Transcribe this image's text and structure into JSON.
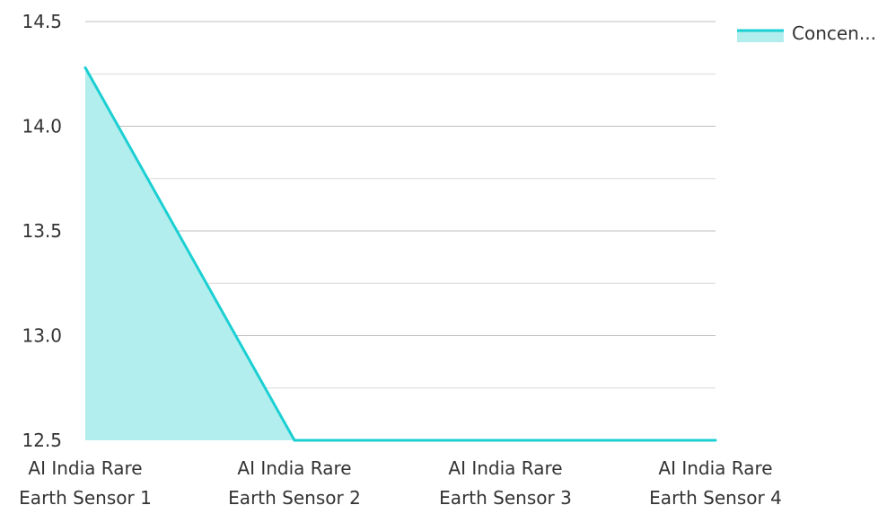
{
  "chart_data": {
    "type": "area",
    "categories": [
      [
        "AI India Rare",
        "Earth Sensor 1"
      ],
      [
        "AI India Rare",
        "Earth Sensor 2"
      ],
      [
        "AI India Rare",
        "Earth Sensor 3"
      ],
      [
        "AI India Rare",
        "Earth Sensor 4"
      ]
    ],
    "series": [
      {
        "name": "Concen...",
        "values": [
          14.28,
          12.5,
          12.5,
          12.5
        ]
      }
    ],
    "ylim": [
      12.5,
      14.5
    ],
    "y_ticks": [
      "12.5",
      "13.0",
      "13.5",
      "14.0",
      "14.5"
    ],
    "y_minor_ticks": [
      12.75,
      13.25,
      13.75,
      14.25
    ],
    "grid": true,
    "legend_position": "top-right",
    "colors": {
      "line": "#1ccfd2",
      "fill": "#b3eeee",
      "grid": "#d9d9d9",
      "grid_major": "#bfbfbf",
      "text": "#333333"
    }
  }
}
